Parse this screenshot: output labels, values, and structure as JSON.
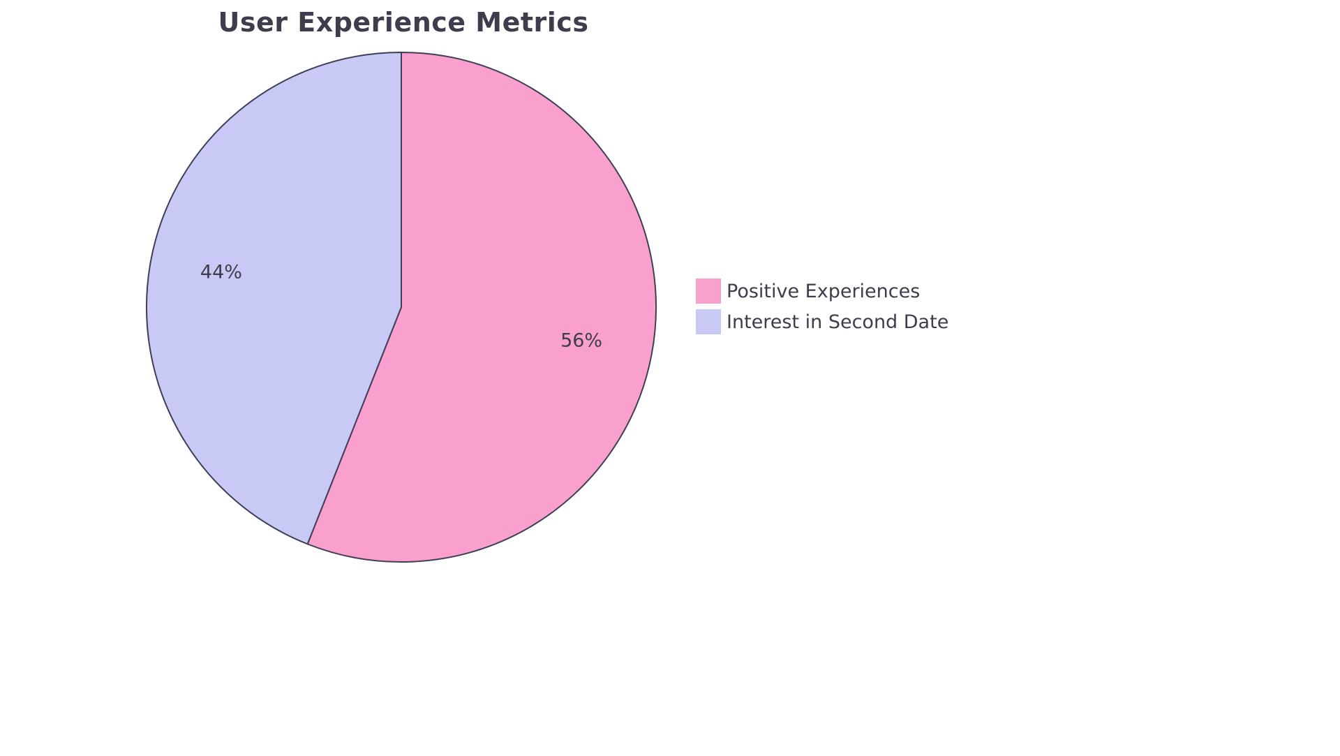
{
  "chart_data": {
    "type": "pie",
    "title": "User Experience Metrics",
    "labels": [
      "Positive Experiences",
      "Interest in Second Date"
    ],
    "values": [
      56,
      44
    ],
    "slice_labels": [
      "56%",
      "44%"
    ],
    "colors": [
      "#F9A0CF",
      "#C8C9F4"
    ],
    "stroke_color": "#3e3e55",
    "text_color": "#3d3d4d",
    "start_angle_deg": 0,
    "direction": "clockwise",
    "legend_position": "right",
    "legend_entries": [
      {
        "label": "Positive Experiences",
        "color": "#F9A0CF"
      },
      {
        "label": "Interest in Second Date",
        "color": "#C8C9F4"
      }
    ]
  }
}
